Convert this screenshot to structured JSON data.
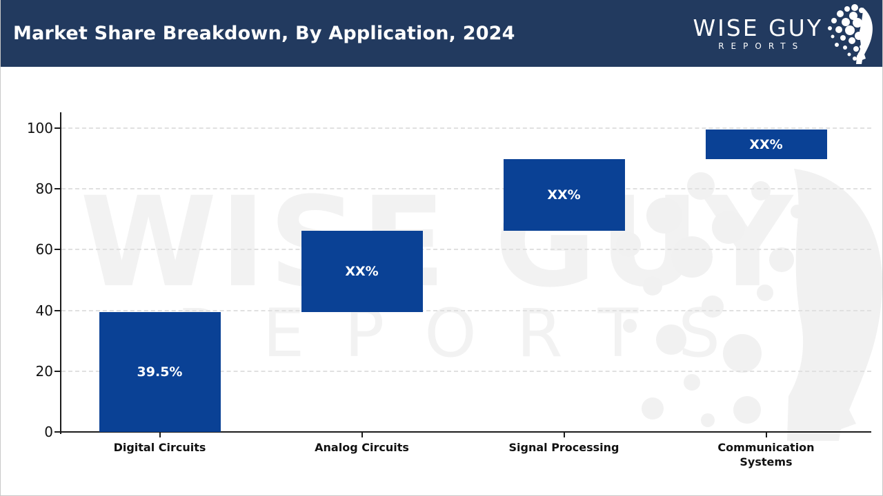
{
  "header": {
    "title": "Market Share Breakdown, By Application, 2024",
    "logo": {
      "line1": "WISE GUY",
      "line2": "REPORTS"
    }
  },
  "watermark": {
    "line1": "WISE GUY",
    "line2": "REPORTS"
  },
  "colors": {
    "header_bg": "#223A5F",
    "bar": "#0A4195",
    "bar_label": "#ffffff",
    "grid": "#e0e0e0",
    "axis": "#1a1a1a",
    "tick_text": "#111111",
    "watermark": "#f2f2f2"
  },
  "chart_data": {
    "type": "bar",
    "subtype": "waterfall",
    "title": "Market Share Breakdown, By Application, 2024",
    "categories": [
      "Digital Circuits",
      "Analog Circuits",
      "Signal Processing",
      "Communication Systems"
    ],
    "segments": [
      {
        "category": "Digital Circuits",
        "category_lines": [
          "Digital Circuits"
        ],
        "start": 0,
        "end": 39.5,
        "label": "39.5%"
      },
      {
        "category": "Analog Circuits",
        "category_lines": [
          "Analog Circuits"
        ],
        "start": 39.5,
        "end": 66.3,
        "label": "XX%"
      },
      {
        "category": "Signal Processing",
        "category_lines": [
          "Signal Processing"
        ],
        "start": 66.3,
        "end": 89.7,
        "label": "XX%"
      },
      {
        "category": "Communication Systems",
        "category_lines": [
          "Communication",
          "Systems"
        ],
        "start": 89.7,
        "end": 99.5,
        "label": "XX%"
      }
    ],
    "xlabel": "",
    "ylabel": "",
    "ylim": [
      0,
      105
    ],
    "yticks": [
      0,
      20,
      40,
      60,
      80,
      100
    ],
    "grid": "horizontal-dashed",
    "legend": "none"
  }
}
